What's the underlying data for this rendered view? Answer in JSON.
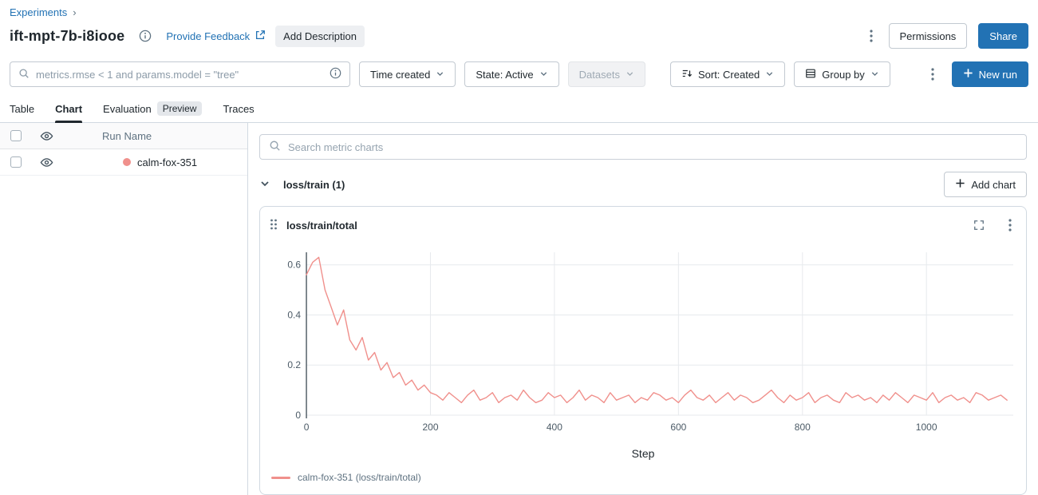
{
  "colors": {
    "accent_blue": "#2272B4",
    "run_line_color": "#F0908C",
    "active_tab_underline": "#20272E"
  },
  "breadcrumb": {
    "experiments": "Experiments"
  },
  "header": {
    "title": "ift-mpt-7b-i8iooe",
    "feedback_link": "Provide Feedback",
    "add_description_button": "Add Description",
    "permissions_button": "Permissions",
    "share_button": "Share"
  },
  "toolbar": {
    "search_placeholder": "metrics.rmse < 1 and params.model = \"tree\"",
    "time_created_button": "Time created",
    "state_button": "State: Active",
    "datasets_button": "Datasets",
    "sort_button": "Sort: Created",
    "group_by_button": "Group by",
    "new_run_button": "New run"
  },
  "tabs": [
    {
      "label": "Table",
      "active": false
    },
    {
      "label": "Chart",
      "active": true
    },
    {
      "label": "Evaluation",
      "active": false,
      "badge": "Preview"
    },
    {
      "label": "Traces",
      "active": false
    }
  ],
  "runs_panel": {
    "name_column_header": "Run Name",
    "rows": [
      {
        "name": "calm-fox-351",
        "color": "#F0908C"
      }
    ]
  },
  "charts_panel": {
    "search_placeholder": "Search metric charts",
    "section_title": "loss/train (1)",
    "add_chart_button": "Add chart",
    "card_title": "loss/train/total",
    "legend_label": "calm-fox-351 (loss/train/total)"
  },
  "chart_data": {
    "type": "line",
    "title": "loss/train/total",
    "xlabel": "Step",
    "ylabel": "",
    "xlim": [
      0,
      1140
    ],
    "ylim": [
      0,
      0.65
    ],
    "xticks": [
      0,
      200,
      400,
      600,
      800,
      1000
    ],
    "yticks": [
      0,
      0.2,
      0.4,
      0.6
    ],
    "grid": true,
    "legend_position": "bottom-left",
    "x": [
      0,
      10,
      20,
      30,
      40,
      50,
      60,
      70,
      80,
      90,
      100,
      110,
      120,
      130,
      140,
      150,
      160,
      170,
      180,
      190,
      200,
      210,
      220,
      230,
      240,
      250,
      260,
      270,
      280,
      290,
      300,
      310,
      320,
      330,
      340,
      350,
      360,
      370,
      380,
      390,
      400,
      410,
      420,
      430,
      440,
      450,
      460,
      470,
      480,
      490,
      500,
      510,
      520,
      530,
      540,
      550,
      560,
      570,
      580,
      590,
      600,
      610,
      620,
      630,
      640,
      650,
      660,
      670,
      680,
      690,
      700,
      710,
      720,
      730,
      740,
      750,
      760,
      770,
      780,
      790,
      800,
      810,
      820,
      830,
      840,
      850,
      860,
      870,
      880,
      890,
      900,
      910,
      920,
      930,
      940,
      950,
      960,
      970,
      980,
      990,
      1000,
      1010,
      1020,
      1030,
      1040,
      1050,
      1060,
      1070,
      1080,
      1090,
      1100,
      1110,
      1120,
      1130
    ],
    "series": [
      {
        "name": "calm-fox-351",
        "label": "calm-fox-351 (loss/train/total)",
        "color": "#F0908C",
        "values": [
          0.56,
          0.61,
          0.63,
          0.5,
          0.43,
          0.36,
          0.42,
          0.3,
          0.26,
          0.31,
          0.22,
          0.25,
          0.18,
          0.21,
          0.15,
          0.17,
          0.12,
          0.14,
          0.1,
          0.12,
          0.09,
          0.08,
          0.06,
          0.09,
          0.07,
          0.05,
          0.08,
          0.1,
          0.06,
          0.07,
          0.09,
          0.05,
          0.07,
          0.08,
          0.06,
          0.1,
          0.07,
          0.05,
          0.06,
          0.09,
          0.07,
          0.08,
          0.05,
          0.07,
          0.1,
          0.06,
          0.08,
          0.07,
          0.05,
          0.09,
          0.06,
          0.07,
          0.08,
          0.05,
          0.07,
          0.06,
          0.09,
          0.08,
          0.06,
          0.07,
          0.05,
          0.08,
          0.1,
          0.07,
          0.06,
          0.08,
          0.05,
          0.07,
          0.09,
          0.06,
          0.08,
          0.07,
          0.05,
          0.06,
          0.08,
          0.1,
          0.07,
          0.05,
          0.08,
          0.06,
          0.07,
          0.09,
          0.05,
          0.07,
          0.08,
          0.06,
          0.05,
          0.09,
          0.07,
          0.08,
          0.06,
          0.07,
          0.05,
          0.08,
          0.06,
          0.09,
          0.07,
          0.05,
          0.08,
          0.07,
          0.06,
          0.09,
          0.05,
          0.07,
          0.08,
          0.06,
          0.07,
          0.05,
          0.09,
          0.08,
          0.06,
          0.07,
          0.08,
          0.06
        ]
      }
    ]
  }
}
